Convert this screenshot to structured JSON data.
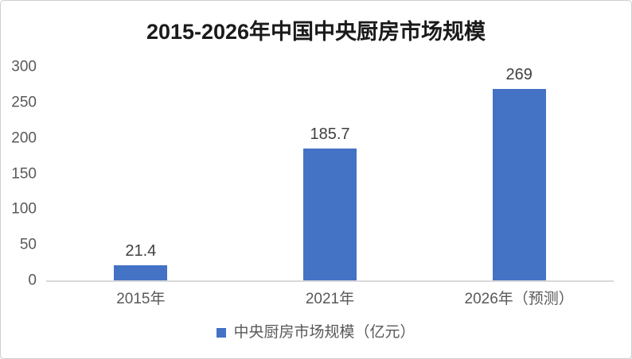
{
  "chart": {
    "title": "2015-2026年中国中央厨房市场规模"
  },
  "chart_data": {
    "type": "bar",
    "title": "2015-2026年中国中央厨房市场规模",
    "categories": [
      "2015年",
      "2021年",
      "2026年（预测）"
    ],
    "values": [
      21.4,
      185.7,
      269
    ],
    "data_labels": [
      "21.4",
      "185.7",
      "269"
    ],
    "xlabel": "",
    "ylabel": "",
    "ylim": [
      0,
      300
    ],
    "yticks": [
      0,
      50,
      100,
      150,
      200,
      250,
      300
    ],
    "grid": false,
    "legend": [
      "中央厨房市场规模（亿元）"
    ],
    "legend_position": "bottom"
  },
  "legend": {
    "label": "中央厨房市场规模（亿元）"
  },
  "colors": {
    "bar": "#4472C4",
    "axis_line": "#D9D9D9",
    "tick_label": "#595959",
    "title_text": "#1A1A1A",
    "data_label": "#404040",
    "card_border": "#CFCFCF"
  }
}
